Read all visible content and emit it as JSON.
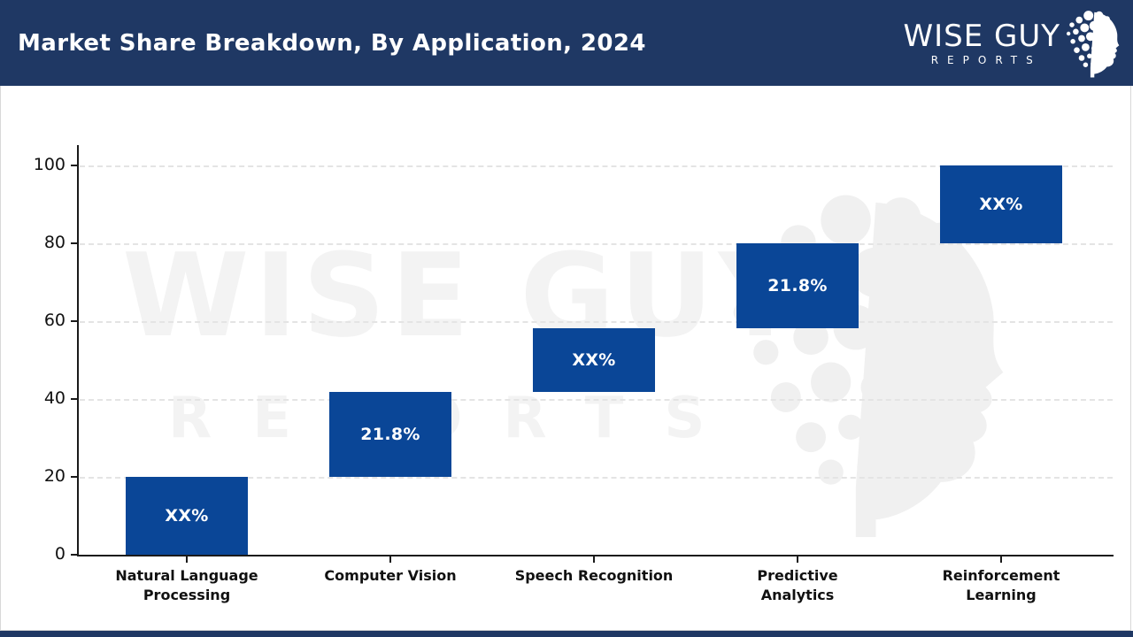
{
  "header": {
    "title": "Market Share Breakdown, By Application, 2024",
    "brand": {
      "name_top": "WISE GUY",
      "name_bottom": "REPORTS"
    }
  },
  "watermark": {
    "line1": "WISE GUY",
    "line2": "REPORTS"
  },
  "colors": {
    "header_bg": "#1f3864",
    "bar": "#0a4697",
    "grid": "#e4e4e4",
    "axis": "#1a1a1a",
    "watermark": "#f3f3f3"
  },
  "chart_data": {
    "type": "bar",
    "subtype": "waterfall",
    "title": "Market Share Breakdown, By Application, 2024",
    "categories": [
      "Natural Language\nProcessing",
      "Computer Vision",
      "Speech Recognition",
      "Predictive\nAnalytics",
      "Reinforcement\nLearning"
    ],
    "segments": [
      {
        "category": "Natural Language Processing",
        "label": "XX%",
        "start": 0,
        "end": 20
      },
      {
        "category": "Computer Vision",
        "label": "21.8%",
        "start": 20,
        "end": 41.8
      },
      {
        "category": "Speech Recognition",
        "label": "XX%",
        "start": 41.8,
        "end": 58.2
      },
      {
        "category": "Predictive Analytics",
        "label": "21.8%",
        "start": 58.2,
        "end": 80
      },
      {
        "category": "Reinforcement Learning",
        "label": "XX%",
        "start": 80,
        "end": 100
      }
    ],
    "bar_color": "#0a4697",
    "ylim": [
      0,
      100
    ],
    "yticks": [
      0,
      20,
      40,
      60,
      80,
      100
    ],
    "xlabel": "",
    "ylabel": "",
    "grid": "horizontal-dashed",
    "legend": "none"
  }
}
